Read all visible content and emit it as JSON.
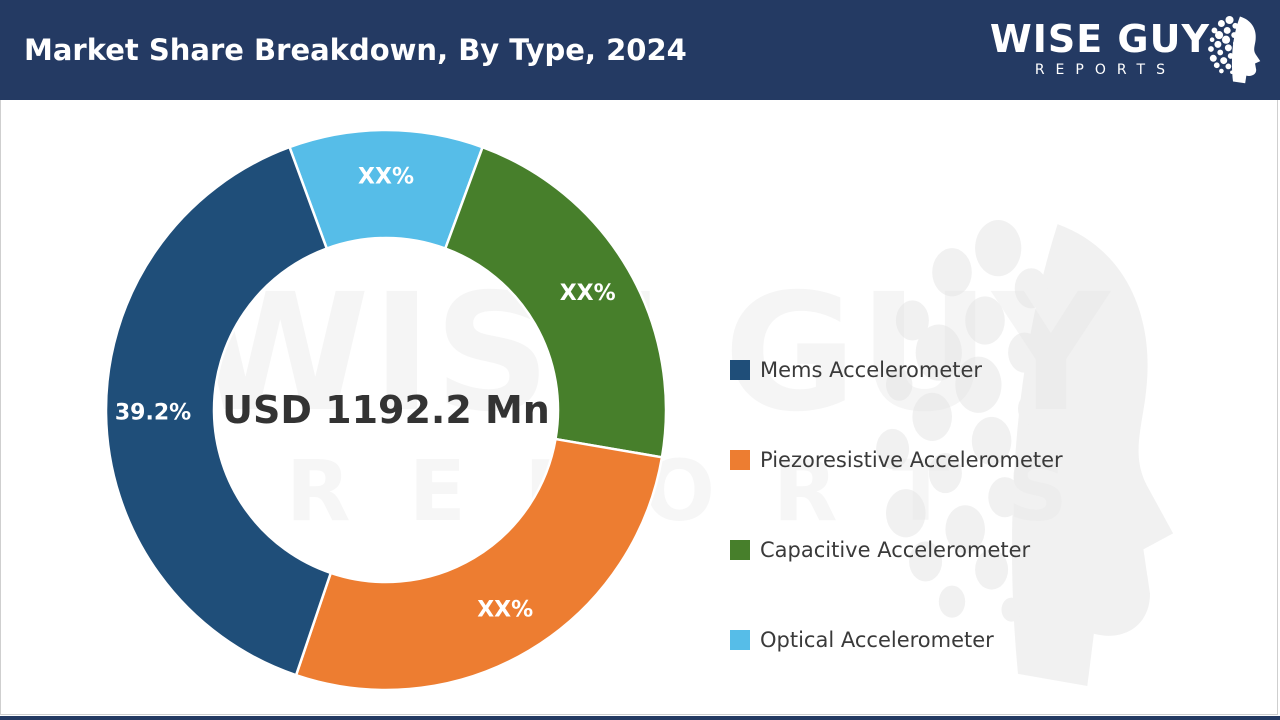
{
  "header": {
    "title": "Market Share Breakdown, By Type, 2024",
    "bg_color": "#243a63",
    "logo": {
      "line1": "WISE GUY",
      "line2": "REPORTS"
    }
  },
  "watermark": {
    "line1": "WISE GUY",
    "line2": "REPORTS"
  },
  "chart_data": {
    "type": "pie",
    "subtype": "donut",
    "title": "Market Share Breakdown, By Type, 2024",
    "center_label": "USD 1192.2 Mn",
    "start_angle_deg": -20.15,
    "slices": [
      {
        "name": "Optical Accelerometer",
        "color": "#56bde8",
        "share_pct": 11.2,
        "label": "XX%"
      },
      {
        "name": "Capacitive Accelerometer",
        "color": "#477f2b",
        "share_pct": 22.1,
        "label": "XX%"
      },
      {
        "name": "Piezoresistive Accelerometer",
        "color": "#ed7d31",
        "share_pct": 27.5,
        "label": "XX%"
      },
      {
        "name": "Mems Accelerometer",
        "color": "#1f4e79",
        "share_pct": 39.2,
        "label": "39.2%"
      }
    ],
    "legend": [
      {
        "label": "Mems Accelerometer",
        "color": "#1f4e79"
      },
      {
        "label": "Piezoresistive Accelerometer",
        "color": "#ed7d31"
      },
      {
        "label": "Capacitive Accelerometer",
        "color": "#477f2b"
      },
      {
        "label": "Optical Accelerometer",
        "color": "#56bde8"
      }
    ],
    "legend_position": "right"
  }
}
